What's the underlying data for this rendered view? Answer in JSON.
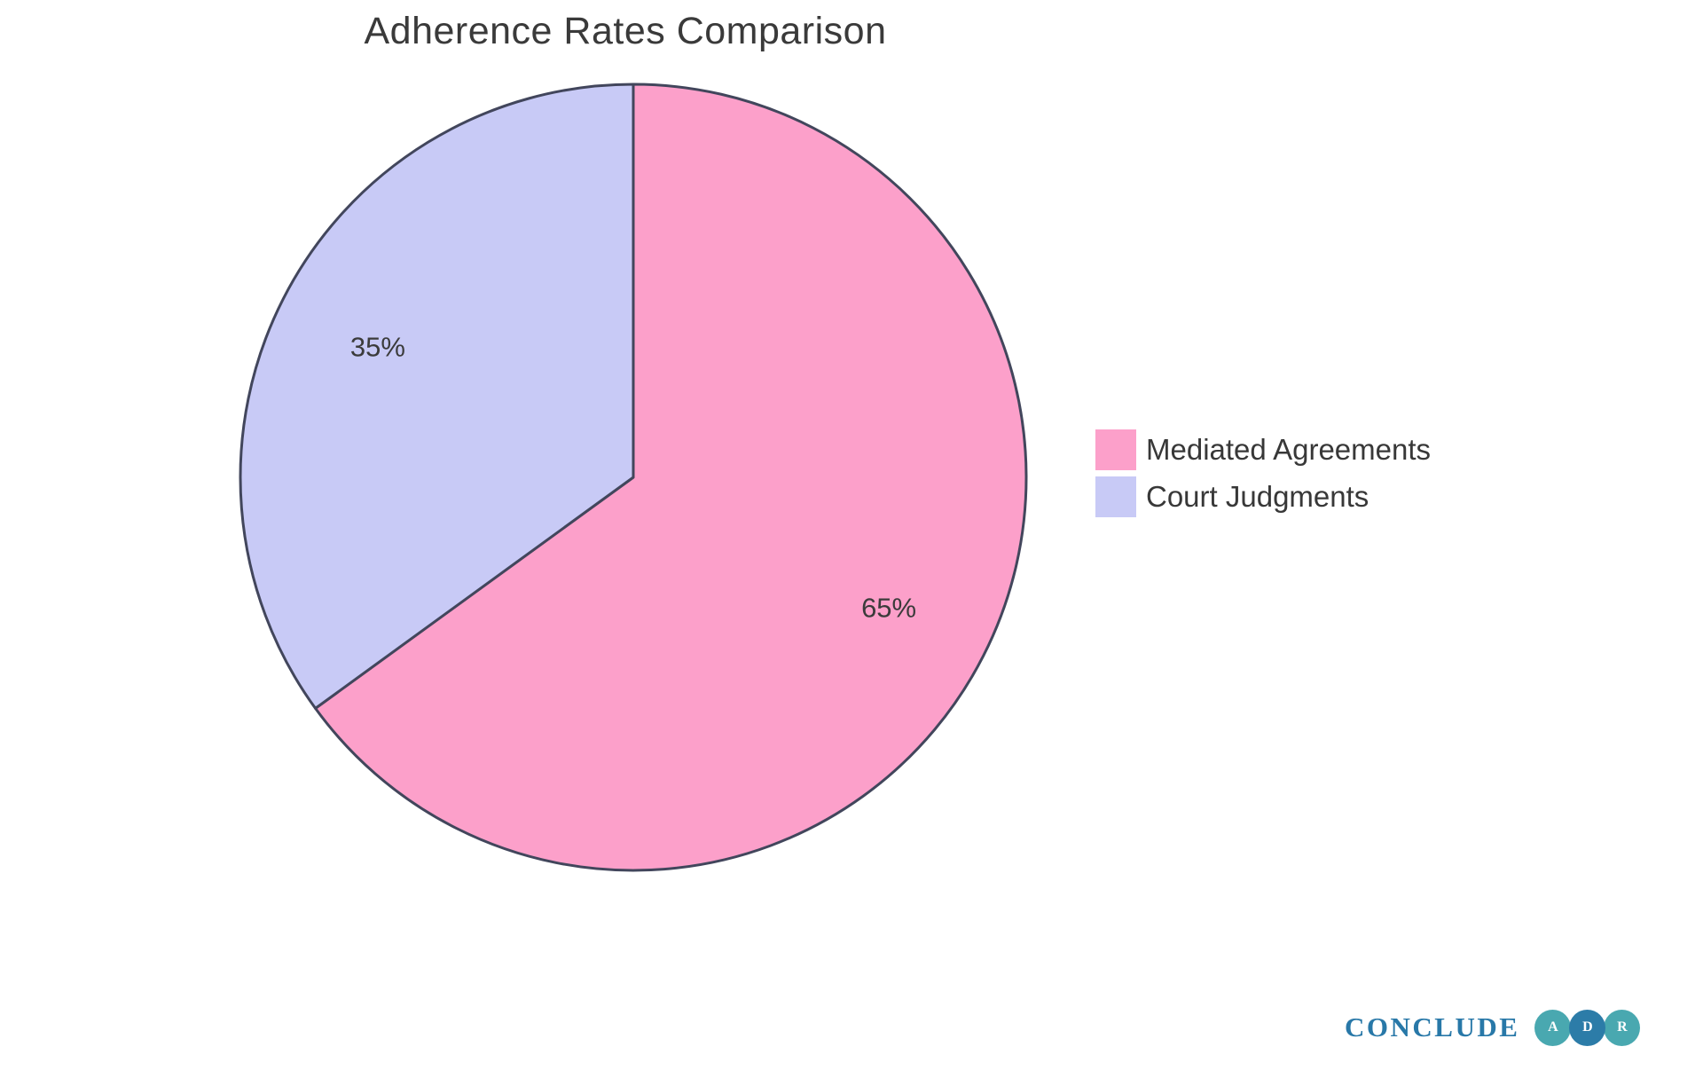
{
  "chart_data": {
    "type": "pie",
    "title": "Adherence Rates Comparison",
    "labels": [
      "Mediated Agreements",
      "Court Judgments"
    ],
    "values": [
      65,
      35
    ],
    "slice_text": [
      "65%",
      "35%"
    ],
    "colors": [
      "#FCA0CA",
      "#C8CAF6"
    ],
    "start_angle": "top",
    "direction": "clockwise",
    "legend_position": "right",
    "stroke_color": "#42465C",
    "stroke_width": 3,
    "slice_label_color": "#3B3B3B",
    "slice_label_font_px": 31,
    "slice_label_radius_ratio": 0.73,
    "background_color": "#FFFFFF",
    "title_color": "#3A3A3A",
    "legend_text_color": "#383838"
  },
  "branding": {
    "wordmark": "CONCLUDE",
    "wordmark_color": "#2878A8",
    "badges": [
      {
        "letter": "A",
        "color": "#49A8B0"
      },
      {
        "letter": "D",
        "color": "#2C7CA8"
      },
      {
        "letter": "R",
        "color": "#49A8B0"
      }
    ]
  }
}
